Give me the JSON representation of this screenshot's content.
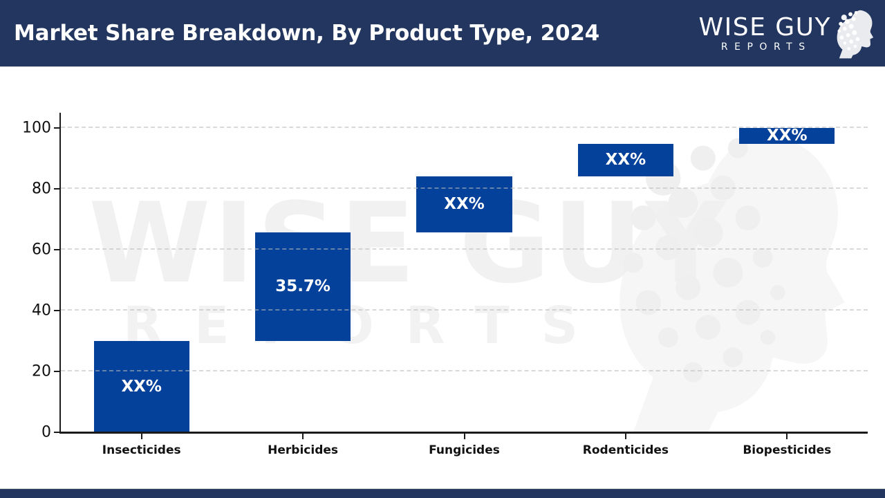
{
  "theme": {
    "header_bg": "#22365f",
    "bar_blue": "#04419b",
    "grid_color": "#d9d9d9",
    "title_color": "#ffffff",
    "watermark_color": "#f1f1f1"
  },
  "header": {
    "title": "Market Share Breakdown, By Product Type, 2024",
    "logo": {
      "line1": "WISE GUY",
      "line2": "REPORTS"
    }
  },
  "watermark": {
    "line1": "WISE GUY",
    "line2": "REPORTS"
  },
  "chart_data": {
    "type": "bar",
    "subtype": "waterfall",
    "title": "Market Share Breakdown, By Product Type, 2024",
    "categories": [
      "Insecticides",
      "Herbicides",
      "Fungicides",
      "Rodenticides",
      "Biopesticides"
    ],
    "segments": [
      {
        "category": "Insecticides",
        "start": 0,
        "end": 30,
        "value": 30,
        "label": "XX%"
      },
      {
        "category": "Herbicides",
        "start": 30,
        "end": 65.7,
        "value": 35.7,
        "label": "35.7%"
      },
      {
        "category": "Fungicides",
        "start": 65.7,
        "end": 84.1,
        "value": 18.4,
        "label": "XX%"
      },
      {
        "category": "Rodenticides",
        "start": 84.1,
        "end": 94.8,
        "value": 10.7,
        "label": "XX%"
      },
      {
        "category": "Biopesticides",
        "start": 94.8,
        "end": 100,
        "value": 5.2,
        "label": "XX%"
      }
    ],
    "y_ticks": [
      0,
      20,
      40,
      60,
      80,
      100
    ],
    "ylim": [
      0,
      105
    ],
    "xlabel": "",
    "ylabel": "",
    "grid": "dashed-horizontal",
    "legend": "none",
    "bar_color": "#04419b",
    "bar_label_color": "#ffffff"
  }
}
